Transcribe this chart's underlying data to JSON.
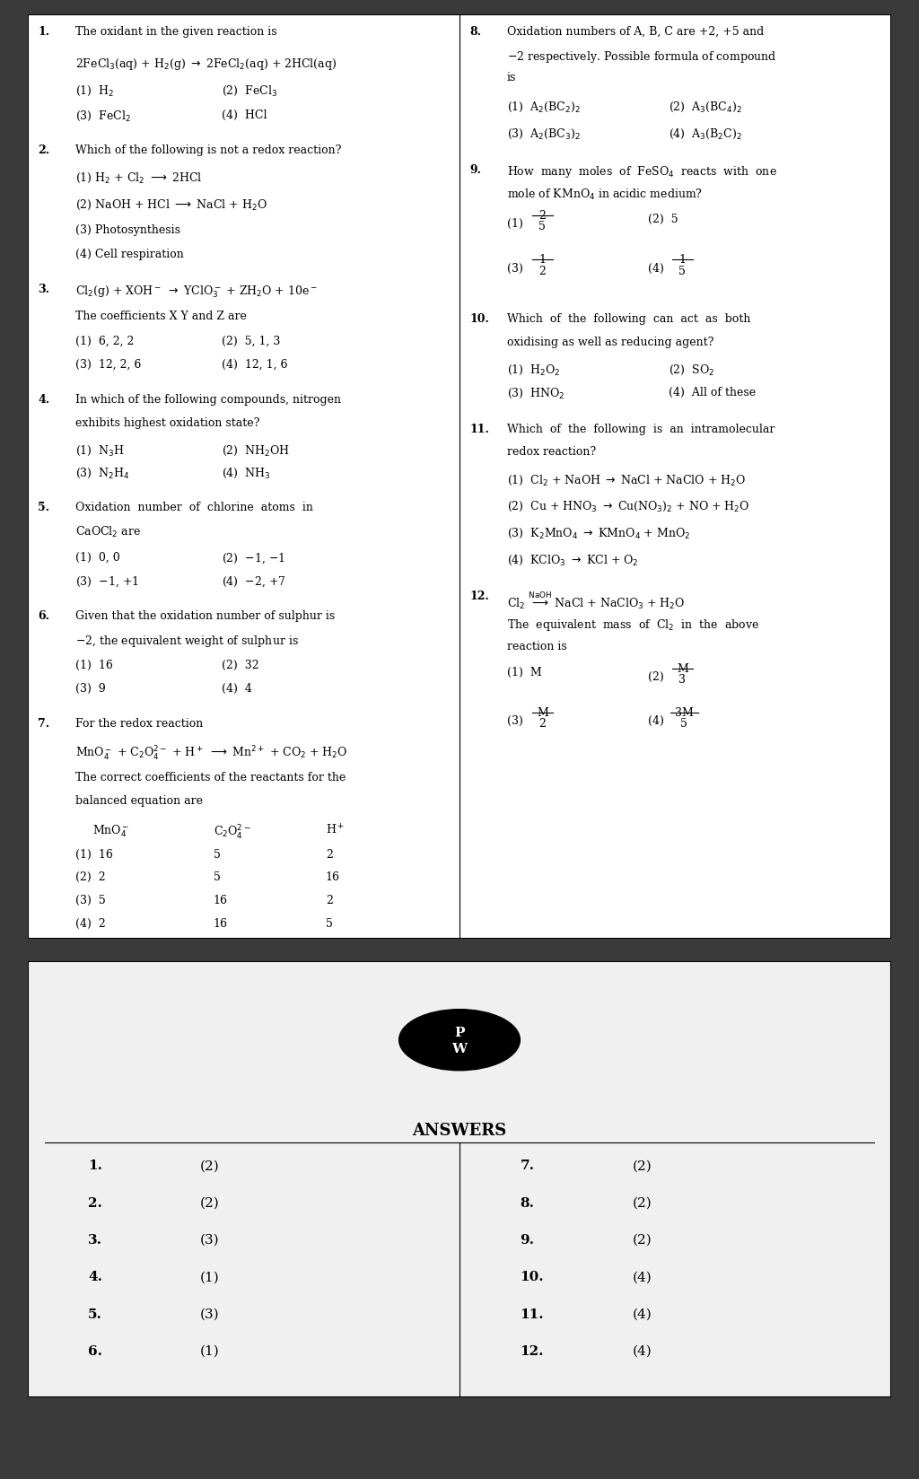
{
  "bg_outer": "#3a3a3a",
  "bg_inner": "#ffffff",
  "bg_answers": "#f0f0f0",
  "border_color": "#000000",
  "text_color": "#000000",
  "font_size": 9.0,
  "answers": {
    "left": [
      [
        "1.",
        "(2)"
      ],
      [
        "2.",
        "(2)"
      ],
      [
        "3.",
        "(3)"
      ],
      [
        "4.",
        "(1)"
      ],
      [
        "5.",
        "(3)"
      ],
      [
        "6.",
        "(1)"
      ]
    ],
    "right": [
      [
        "7.",
        "(2)"
      ],
      [
        "8.",
        "(2)"
      ],
      [
        "9.",
        "(2)"
      ],
      [
        "10.",
        "(4)"
      ],
      [
        "11.",
        "(4)"
      ],
      [
        "12.",
        "(4)"
      ]
    ]
  }
}
